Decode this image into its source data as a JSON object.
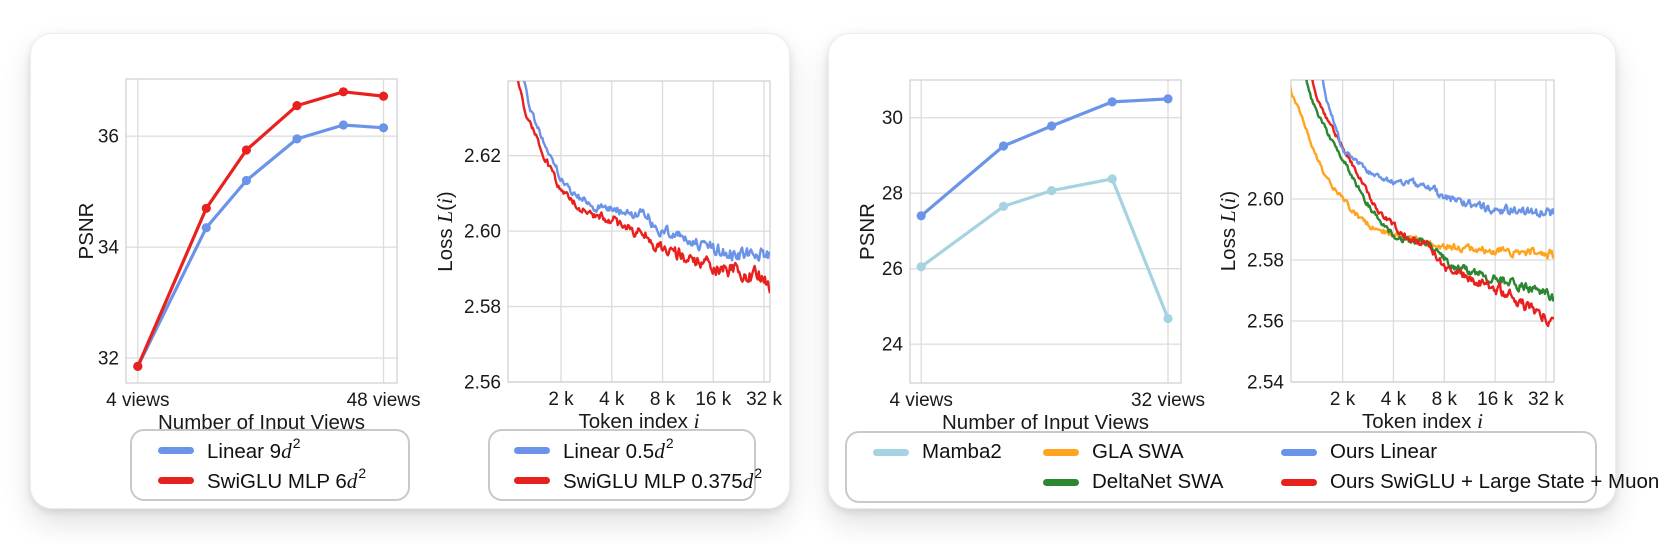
{
  "figure": {
    "panels": [
      {
        "name": "left-panel",
        "chart_ids": [
          "left-psnr",
          "left-loss"
        ],
        "legend_ids": [
          "legend-left-psnr",
          "legend-left-loss"
        ]
      },
      {
        "name": "right-panel",
        "chart_ids": [
          "right-psnr",
          "right-loss"
        ],
        "legend_ids": [
          "legend-right"
        ]
      }
    ],
    "colors": {
      "blue": "#6b94e8",
      "red": "#e8211f",
      "light_blue": "#a5d3e2",
      "orange": "#ffa41f",
      "green": "#2d8630",
      "grid": "#dcdcdc",
      "spine": "#cfcfcf",
      "legend_border": "#c9c9c9"
    }
  },
  "chart_data": [
    {
      "id": "left-psnr",
      "type": "line",
      "xscale": "log",
      "grid": true,
      "xlabel": [
        {
          "t": "Number of Input Views"
        }
      ],
      "ylabel": [
        {
          "t": "PSNR"
        }
      ],
      "xlim": [
        3.55,
        55
      ],
      "ylim": [
        31.55,
        37.03
      ],
      "xticks": [
        {
          "v": 4,
          "label": "4 views"
        },
        {
          "v": 48,
          "label": "48 views"
        }
      ],
      "yticks": [
        {
          "v": 32,
          "label": "32"
        },
        {
          "v": 34,
          "label": "34"
        },
        {
          "v": 36,
          "label": "36"
        }
      ],
      "series": [
        {
          "name": "Linear 9d2",
          "color": "#6b94e8",
          "marker": true,
          "x": [
            4,
            8,
            12,
            20,
            32,
            48
          ],
          "y": [
            31.85,
            34.35,
            35.2,
            35.95,
            36.2,
            36.15
          ]
        },
        {
          "name": "SwiGLU MLP 6d2",
          "color": "#e8211f",
          "marker": true,
          "x": [
            4,
            8,
            12,
            20,
            32,
            48
          ],
          "y": [
            31.85,
            34.7,
            35.75,
            36.55,
            36.8,
            36.72
          ]
        }
      ]
    },
    {
      "id": "left-loss",
      "type": "line",
      "xscale": "log",
      "grid": true,
      "xlabel": [
        {
          "t": "Token index "
        },
        {
          "t": "i",
          "s": "i"
        }
      ],
      "ylabel": [
        {
          "t": "Loss "
        },
        {
          "t": "L",
          "s": "i"
        },
        {
          "t": "("
        },
        {
          "t": "i",
          "s": "i"
        },
        {
          "t": ")"
        }
      ],
      "xlim": [
        970,
        34700
      ],
      "ylim": [
        2.56,
        2.6398
      ],
      "xticks": [
        {
          "v": 2000,
          "label": "2 k"
        },
        {
          "v": 4000,
          "label": "4 k"
        },
        {
          "v": 8000,
          "label": "8 k"
        },
        {
          "v": 16000,
          "label": "16 k"
        },
        {
          "v": 32000,
          "label": "32 k"
        }
      ],
      "yticks": [
        {
          "v": 2.56,
          "label": "2.56"
        },
        {
          "v": 2.58,
          "label": "2.58"
        },
        {
          "v": 2.6,
          "label": "2.60"
        },
        {
          "v": 2.62,
          "label": "2.62"
        }
      ],
      "series": [
        {
          "name": "Linear 0.5d2",
          "color": "#6b94e8",
          "noise": [
            0.0006,
            0.0017
          ],
          "x": [
            1150,
            1300,
            1500,
            1750,
            2000,
            2300,
            2700,
            3100,
            3600,
            4200,
            4800,
            5400,
            6200,
            6600,
            7000,
            7600,
            8200,
            9000,
            10000,
            11500,
            13000,
            15000,
            17000,
            20000,
            23000,
            27000,
            31000,
            34500
          ],
          "y": [
            2.645,
            2.633,
            2.626,
            2.6195,
            2.614,
            2.6105,
            2.6082,
            2.6068,
            2.606,
            2.6058,
            2.605,
            2.6045,
            2.6048,
            2.6042,
            2.602,
            2.6008,
            2.5998,
            2.5993,
            2.5985,
            2.5972,
            2.5965,
            2.5952,
            2.595,
            2.5945,
            2.594,
            2.5938,
            2.5936,
            2.5928
          ]
        },
        {
          "name": "SwiGLU MLP 0.375d2",
          "color": "#e8211f",
          "noise": [
            0.0006,
            0.0019
          ],
          "x": [
            1060,
            1200,
            1400,
            1650,
            1900,
            2200,
            2600,
            3000,
            3500,
            4100,
            4700,
            5300,
            6000,
            6400,
            6800,
            7400,
            8000,
            8800,
            9800,
            11200,
            12800,
            14800,
            16800,
            19800,
            22800,
            26800,
            30800,
            34500
          ],
          "y": [
            2.645,
            2.633,
            2.6255,
            2.6185,
            2.6125,
            2.609,
            2.6062,
            2.6045,
            2.6038,
            2.603,
            2.601,
            2.6,
            2.6003,
            2.5993,
            2.5975,
            2.5962,
            2.5955,
            2.5948,
            2.594,
            2.5928,
            2.5918,
            2.591,
            2.5902,
            2.5898,
            2.589,
            2.5885,
            2.5878,
            2.5862
          ]
        }
      ]
    },
    {
      "id": "right-psnr",
      "type": "line",
      "xscale": "log",
      "grid": true,
      "xlabel": [
        {
          "t": "Number of Input Views"
        }
      ],
      "ylabel": [
        {
          "t": "PSNR"
        }
      ],
      "xlim": [
        3.64,
        35.7
      ],
      "ylim": [
        22.97,
        31.0
      ],
      "xticks": [
        {
          "v": 4,
          "label": "4 views"
        },
        {
          "v": 32,
          "label": "32 views"
        }
      ],
      "yticks": [
        {
          "v": 24,
          "label": "24"
        },
        {
          "v": 26,
          "label": "26"
        },
        {
          "v": 28,
          "label": "28"
        },
        {
          "v": 30,
          "label": "30"
        }
      ],
      "series": [
        {
          "name": "Mamba2",
          "color": "#a5d3e2",
          "marker": true,
          "x": [
            4,
            8,
            12,
            20,
            32
          ],
          "y": [
            26.05,
            27.65,
            28.07,
            28.38,
            24.68
          ]
        },
        {
          "name": "Ours Linear",
          "color": "#6b94e8",
          "marker": true,
          "x": [
            4,
            8,
            12,
            20,
            32
          ],
          "y": [
            27.4,
            29.25,
            29.78,
            30.42,
            30.5
          ]
        }
      ]
    },
    {
      "id": "right-loss",
      "type": "line",
      "xscale": "log",
      "grid": true,
      "xlabel": [
        {
          "t": "Token index "
        },
        {
          "t": "i",
          "s": "i"
        }
      ],
      "ylabel": [
        {
          "t": "Loss "
        },
        {
          "t": "L",
          "s": "i"
        },
        {
          "t": "("
        },
        {
          "t": "i",
          "s": "i"
        },
        {
          "t": ")"
        }
      ],
      "xlim": [
        990,
        35700
      ],
      "ylim": [
        2.54,
        2.639
      ],
      "xticks": [
        {
          "v": 2000,
          "label": "2 k"
        },
        {
          "v": 4000,
          "label": "4 k"
        },
        {
          "v": 8000,
          "label": "8 k"
        },
        {
          "v": 16000,
          "label": "16 k"
        },
        {
          "v": 32000,
          "label": "32 k"
        }
      ],
      "yticks": [
        {
          "v": 2.54,
          "label": "2.54"
        },
        {
          "v": 2.56,
          "label": "2.56"
        },
        {
          "v": 2.58,
          "label": "2.58"
        },
        {
          "v": 2.6,
          "label": "2.60"
        }
      ],
      "series": [
        {
          "name": "GLA SWA",
          "color": "#ffa41f",
          "noise": [
            0.0006,
            0.0014
          ],
          "x": [
            880,
            990,
            1100,
            1250,
            1400,
            1600,
            1800,
            2000,
            2250,
            2500,
            2800,
            3100,
            3500,
            3900,
            4400,
            5000,
            5600,
            6300,
            7100,
            8000,
            9000,
            10000,
            11500,
            13000,
            15000,
            17000,
            19500,
            22000,
            25000,
            28000,
            31000,
            34000,
            35500
          ],
          "y": [
            2.648,
            2.635,
            2.629,
            2.621,
            2.614,
            2.607,
            2.603,
            2.6,
            2.5965,
            2.594,
            2.5918,
            2.5905,
            2.5893,
            2.5885,
            2.5878,
            2.587,
            2.5862,
            2.5856,
            2.585,
            2.5843,
            2.5841,
            2.584,
            2.5838,
            2.5835,
            2.5833,
            2.5831,
            2.583,
            2.5829,
            2.5827,
            2.5826,
            2.5824,
            2.5821,
            2.5805
          ]
        },
        {
          "name": "DeltaNet SWA",
          "color": "#2d8630",
          "noise": [
            0.0005,
            0.0016
          ],
          "x": [
            1150,
            1300,
            1450,
            1650,
            1850,
            2100,
            2400,
            2700,
            3000,
            3300,
            3600,
            3900,
            4200,
            4600,
            5000,
            5400,
            5800,
            6200,
            6600,
            7000,
            7500,
            8000,
            8800,
            9800,
            11000,
            12500,
            14000,
            16000,
            18000,
            20000,
            22500,
            25000,
            28000,
            31000,
            34000,
            35500
          ],
          "y": [
            2.645,
            2.633,
            2.627,
            2.621,
            2.616,
            2.611,
            2.605,
            2.6,
            2.596,
            2.593,
            2.5905,
            2.5888,
            2.5875,
            2.5868,
            2.5863,
            2.586,
            2.5858,
            2.586,
            2.5856,
            2.584,
            2.582,
            2.58,
            2.5785,
            2.5775,
            2.5765,
            2.5755,
            2.5748,
            2.574,
            2.5732,
            2.5724,
            2.5716,
            2.5708,
            2.57,
            2.5692,
            2.5685,
            2.567
          ]
        },
        {
          "name": "Ours SwiGLU + Large State + Muon",
          "color": "#e8211f",
          "noise": [
            0.0005,
            0.0018
          ],
          "x": [
            1250,
            1400,
            1550,
            1750,
            1950,
            2200,
            2500,
            2800,
            3100,
            3400,
            3700,
            4000,
            4300,
            4700,
            5100,
            5500,
            5900,
            6300,
            6700,
            7100,
            7600,
            8100,
            8900,
            9900,
            11000,
            12500,
            14000,
            16000,
            18000,
            20000,
            22000,
            24000,
            26000,
            28000,
            30000,
            32000,
            34000,
            35500
          ],
          "y": [
            2.645,
            2.633,
            2.628,
            2.623,
            2.618,
            2.613,
            2.607,
            2.602,
            2.598,
            2.595,
            2.5928,
            2.591,
            2.5895,
            2.588,
            2.587,
            2.5862,
            2.5858,
            2.5852,
            2.584,
            2.5815,
            2.5795,
            2.578,
            2.5765,
            2.5752,
            2.5742,
            2.573,
            2.5718,
            2.5706,
            2.5694,
            2.5675,
            2.566,
            2.565,
            2.5638,
            2.5632,
            2.5622,
            2.5612,
            2.56,
            2.559
          ]
        },
        {
          "name": "Ours Linear",
          "color": "#6b94e8",
          "noise": [
            0.0005,
            0.0016
          ],
          "x": [
            1450,
            1600,
            1800,
            2000,
            2300,
            2600,
            3000,
            3400,
            3900,
            4400,
            5000,
            5600,
            6100,
            6500,
            7000,
            7600,
            8300,
            9200,
            10200,
            11500,
            13000,
            15000,
            17500,
            20000,
            23000,
            26000,
            29000,
            32000,
            35500
          ],
          "y": [
            2.645,
            2.633,
            2.6245,
            2.616,
            2.613,
            2.611,
            2.608,
            2.6065,
            2.6058,
            2.6052,
            2.6055,
            2.6048,
            2.6052,
            2.604,
            2.6028,
            2.6015,
            2.6003,
            2.5995,
            2.5988,
            2.598,
            2.5975,
            2.5968,
            2.5963,
            2.5962,
            2.5958,
            2.5957,
            2.5956,
            2.5953,
            2.595
          ]
        }
      ]
    }
  ],
  "legends": [
    {
      "id": "legend-left-psnr",
      "columns": [
        [
          {
            "color": "#6b94e8",
            "parts": [
              {
                "t": "Linear 9"
              },
              {
                "t": "d",
                "s": "i"
              },
              {
                "t": "2",
                "s": "sup"
              }
            ]
          },
          {
            "color": "#e8211f",
            "parts": [
              {
                "t": "SwiGLU MLP 6"
              },
              {
                "t": "d",
                "s": "i"
              },
              {
                "t": "2",
                "s": "sup"
              }
            ]
          }
        ]
      ]
    },
    {
      "id": "legend-left-loss",
      "columns": [
        [
          {
            "color": "#6b94e8",
            "parts": [
              {
                "t": "Linear 0.5"
              },
              {
                "t": "d",
                "s": "i"
              },
              {
                "t": "2",
                "s": "sup"
              }
            ]
          },
          {
            "color": "#e8211f",
            "parts": [
              {
                "t": "SwiGLU MLP 0.375"
              },
              {
                "t": "d",
                "s": "i"
              },
              {
                "t": "2",
                "s": "sup"
              }
            ]
          }
        ]
      ]
    },
    {
      "id": "legend-right",
      "columns": [
        [
          {
            "color": "#a5d3e2",
            "parts": [
              {
                "t": "Mamba2"
              }
            ]
          }
        ],
        [
          {
            "color": "#ffa41f",
            "parts": [
              {
                "t": "GLA SWA"
              }
            ]
          },
          {
            "color": "#2d8630",
            "parts": [
              {
                "t": "DeltaNet SWA"
              }
            ]
          }
        ],
        [
          {
            "color": "#6b94e8",
            "parts": [
              {
                "t": "Ours Linear"
              }
            ]
          },
          {
            "color": "#e8211f",
            "parts": [
              {
                "t": "Ours SwiGLU + Large State + Muon"
              }
            ]
          }
        ]
      ]
    }
  ]
}
